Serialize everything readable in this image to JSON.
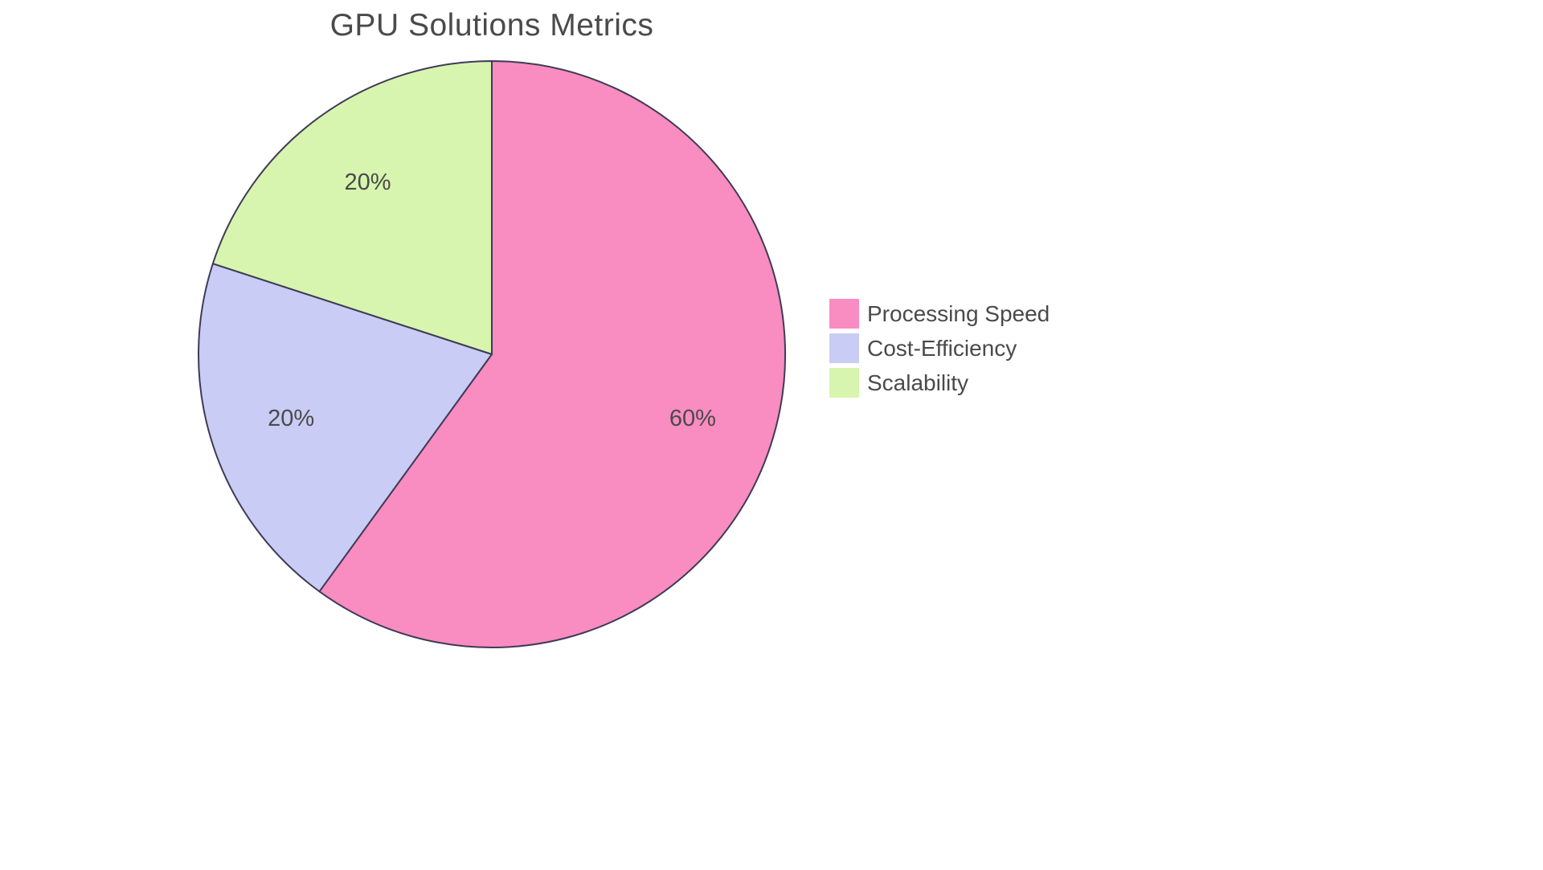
{
  "page": {
    "background": "#FFFFFF"
  },
  "chart_data": {
    "type": "pie",
    "title": "GPU Solutions Metrics",
    "labels": [
      "Processing Speed",
      "Cost-Efficiency",
      "Scalability"
    ],
    "values": [
      60,
      20,
      20
    ],
    "value_labels": [
      "60%",
      "20%",
      "20%"
    ],
    "colors": [
      "#F98CC0",
      "#C9CCF4",
      "#D7F5AF"
    ],
    "slice_border_color": "#3F3B56",
    "text_color": "#4A4A4A",
    "legend_position": "right",
    "start_angle_deg": 0,
    "direction": "clockwise"
  }
}
